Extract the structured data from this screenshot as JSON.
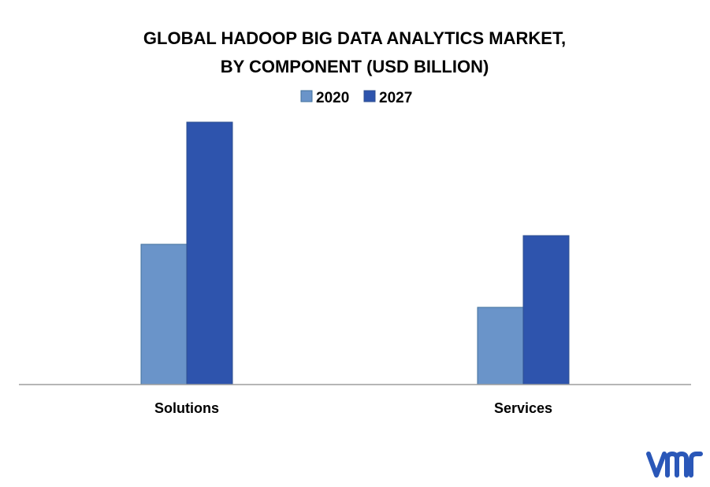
{
  "chart_data": {
    "type": "bar",
    "title": "GLOBAL HADOOP BIG DATA ANALYTICS MARKET,",
    "subtitle": "BY COMPONENT (USD BILLION)",
    "categories": [
      "Solutions",
      "Services"
    ],
    "series": [
      {
        "name": "2020",
        "color": "#6a94c9",
        "values": [
          17.8,
          9.8
        ]
      },
      {
        "name": "2027",
        "color": "#2e54ad",
        "values": [
          33.3,
          18.9
        ]
      }
    ],
    "xlabel": "",
    "ylabel": "",
    "ylim": [
      0,
      35
    ],
    "grid": false,
    "legend_position": "top-center"
  },
  "logo": {
    "text": "vmr",
    "color": "#2a57b8"
  }
}
